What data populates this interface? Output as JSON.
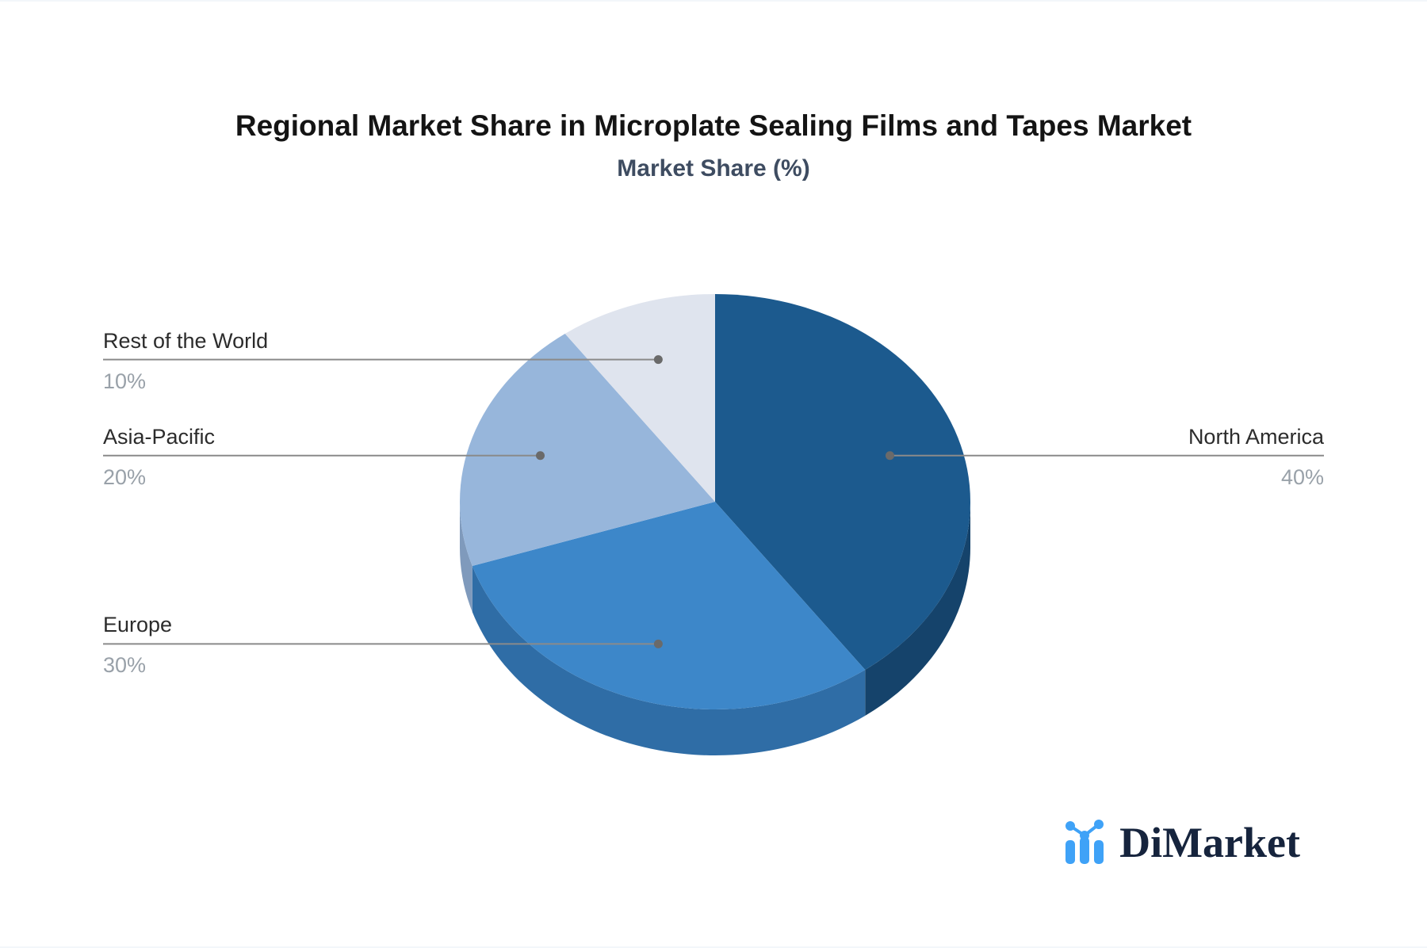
{
  "title": "Regional Market Share in Microplate Sealing Films and Tapes Market",
  "subtitle": "Market Share (%)",
  "brand": {
    "name": "DiMarket"
  },
  "style": {
    "leader_line_color": "#8a8a8a",
    "leader_dot_color": "#6a6a6a",
    "title_color": "#141414",
    "subtitle_color": "#3e4c61",
    "value_color": "#99a1a9"
  },
  "chart_data": {
    "type": "pie",
    "effect": "3d",
    "title": "Regional Market Share in Microplate Sealing Films and Tapes Market",
    "subtitle": "Market Share (%)",
    "unit": "%",
    "direction": "clockwise",
    "start_angle_deg": 0,
    "legend_position": "callout-labels",
    "categories": [
      "North America",
      "Europe",
      "Asia-Pacific",
      "Rest of the World"
    ],
    "values": [
      40,
      30,
      20,
      10
    ],
    "slices": [
      {
        "label": "North America",
        "value": 40,
        "display": "40%",
        "color": "#1c5a8e",
        "side_color": "#15436b",
        "callout_side": "right"
      },
      {
        "label": "Europe",
        "value": 30,
        "display": "30%",
        "color": "#3d87c9",
        "side_color": "#2f6da6",
        "callout_side": "left"
      },
      {
        "label": "Asia-Pacific",
        "value": 20,
        "display": "20%",
        "color": "#97b6db",
        "side_color": "#7f9abc",
        "callout_side": "left"
      },
      {
        "label": "Rest of the World",
        "value": 10,
        "display": "10%",
        "color": "#dfe4ee",
        "side_color": "#bfc9da",
        "callout_side": "left"
      }
    ]
  }
}
